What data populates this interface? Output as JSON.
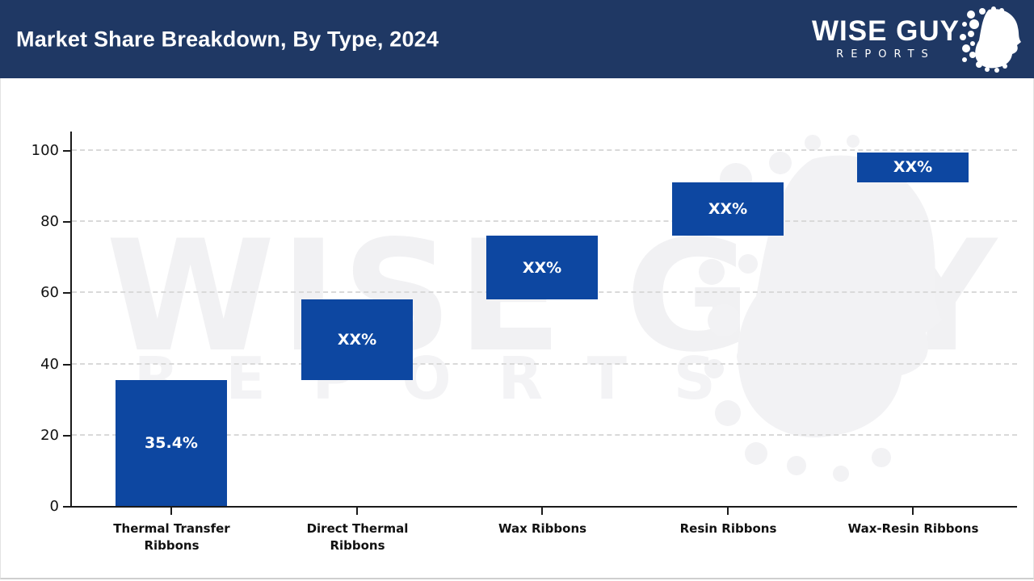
{
  "header": {
    "title": "Market Share Breakdown, By Type, 2024",
    "logo": {
      "line1": "WISE GUY",
      "line2": "REPORTS"
    }
  },
  "watermark": {
    "line1": "WISE GUY",
    "line2": "REPORTS"
  },
  "colors": {
    "header_bg": "#1F3864",
    "bar": "#0D47A1",
    "bar_label": "#ffffff",
    "gridline": "#d9d9d9",
    "axis": "#1a1a1a",
    "watermark": "#f1f1f3"
  },
  "chart_data": {
    "type": "bar",
    "subtype": "waterfall-stacked-ranges",
    "title": "Market Share Breakdown, By Type, 2024",
    "xlabel": "",
    "ylabel": "",
    "ylim": [
      0,
      100
    ],
    "yticks": [
      0,
      20,
      40,
      60,
      80,
      100
    ],
    "grid": "horizontal-dashed",
    "legend": "none",
    "categories": [
      "Thermal Transfer Ribbons",
      "Direct Thermal Ribbons",
      "Wax Ribbons",
      "Resin Ribbons",
      "Wax-Resin Ribbons"
    ],
    "bars": [
      {
        "category": "Thermal Transfer Ribbons",
        "start": 0,
        "end": 35.4,
        "label": "35.4%"
      },
      {
        "category": "Direct Thermal Ribbons",
        "start": 35.4,
        "end": 58,
        "label": "XX%"
      },
      {
        "category": "Wax Ribbons",
        "start": 58,
        "end": 76,
        "label": "XX%"
      },
      {
        "category": "Resin Ribbons",
        "start": 76,
        "end": 91,
        "label": "XX%"
      },
      {
        "category": "Wax-Resin Ribbons",
        "start": 91,
        "end": 99.4,
        "label": "XX%"
      }
    ]
  }
}
